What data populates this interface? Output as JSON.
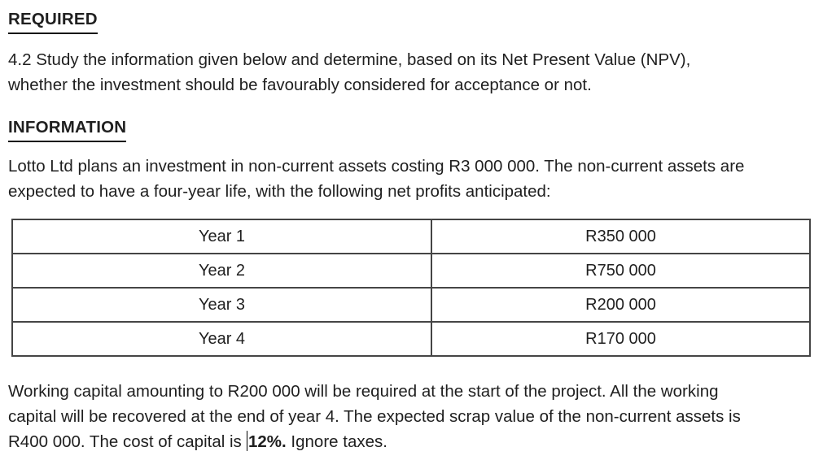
{
  "page": {
    "background": "#ffffff",
    "text_color": "#1f1f1f",
    "table_border_color": "#454545"
  },
  "document": {
    "required_heading": "REQUIRED",
    "required_paragraph": {
      "line1": "4.2 Study the information given below and determine, based on its Net Present Value (NPV),",
      "line2": "whether the investment should be favourably considered for acceptance or not."
    },
    "information_heading": "INFORMATION",
    "information_paragraph": {
      "line1": "Lotto Ltd plans an investment in non-current assets costing R3 000 000. The non-current assets are",
      "line2": "expected to have a four-year life, with the following net profits anticipated:"
    },
    "profit_table": {
      "rows": [
        {
          "year": "Year 1",
          "amount": "R350 000"
        },
        {
          "year": "Year 2",
          "amount": "R750 000"
        },
        {
          "year": "Year 3",
          "amount": "R200 000"
        },
        {
          "year": "Year 4",
          "amount": "R170 000"
        }
      ]
    },
    "closing_paragraph": {
      "line1": "Working capital amounting to R200 000 will be required at the start of the project. All the working",
      "line2": "capital will be recovered at the end of year 4. The expected scrap value of the non-current assets is",
      "line3_before_bold": "R400 000. The cost of capital is ",
      "line3_bold": "12%.",
      "line3_after_bold": " Ignore taxes."
    }
  }
}
